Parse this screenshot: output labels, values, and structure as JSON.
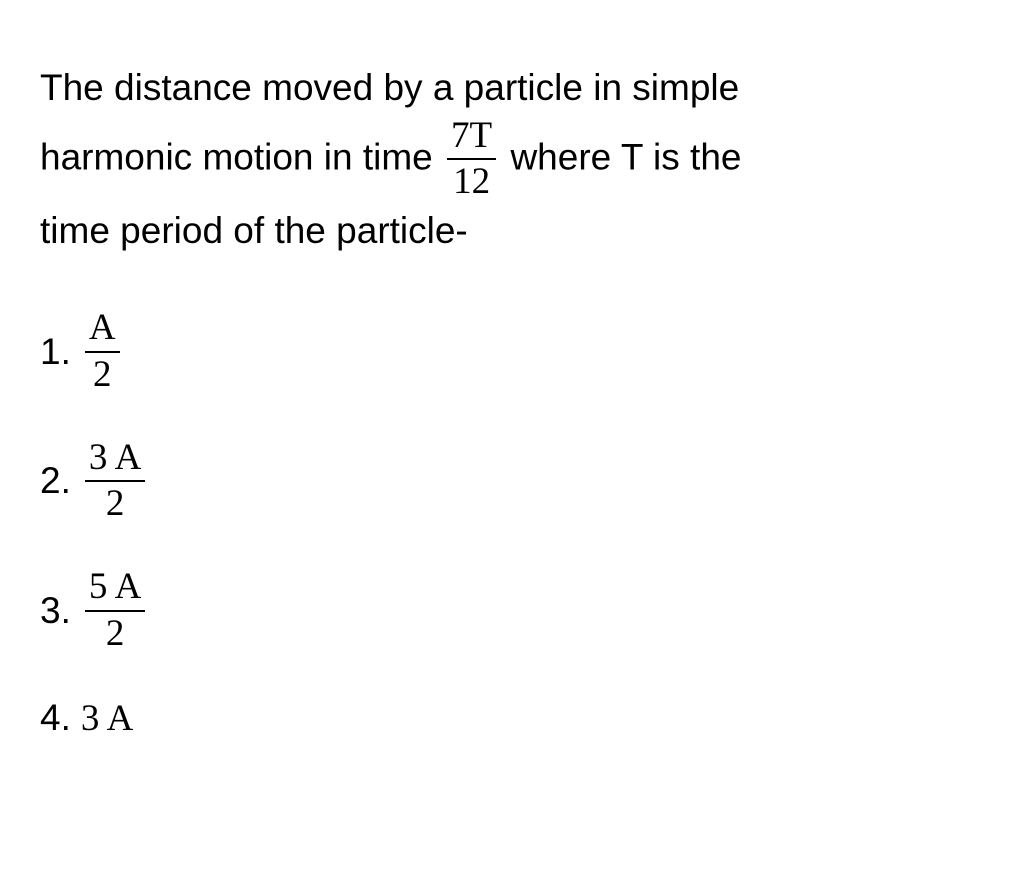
{
  "question": {
    "line1_prefix": "The distance moved by a particle in simple",
    "line2_prefix": "harmonic motion in time",
    "fraction_num": "7T",
    "fraction_den": "12",
    "line2_suffix": "where T is the",
    "line3": "time period of the particle-"
  },
  "options": [
    {
      "number": "1.",
      "numerator": "A",
      "denominator": "2",
      "type": "fraction"
    },
    {
      "number": "2.",
      "numerator": "3 A",
      "denominator": "2",
      "type": "fraction"
    },
    {
      "number": "3.",
      "numerator": "5 A",
      "denominator": "2",
      "type": "fraction"
    },
    {
      "number": "4.",
      "text": "3 A",
      "type": "text"
    }
  ],
  "styling": {
    "background_color": "#ffffff",
    "text_color": "#000000",
    "question_fontsize": 37,
    "option_fontsize": 37,
    "font_family_body": "Arial, Helvetica, sans-serif",
    "font_family_math": "Times New Roman, Times, serif",
    "fraction_border_width": 2,
    "line_height": 1.5,
    "option_gap": 42
  }
}
